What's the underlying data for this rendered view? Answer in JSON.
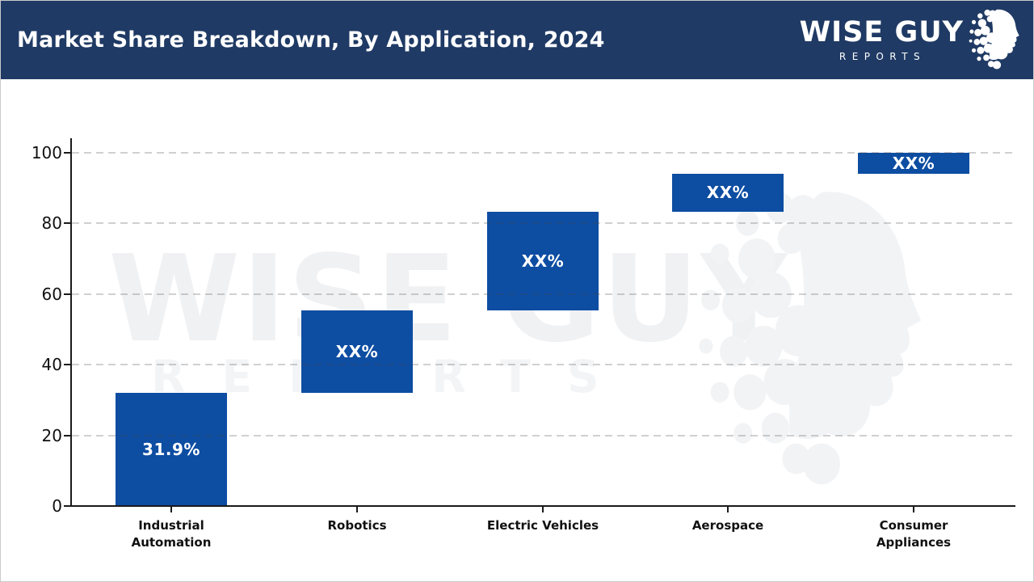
{
  "header": {
    "title": "Market Share Breakdown, By Application, 2024",
    "logo": {
      "line1": "WISE GUY",
      "line2": "REPORTS"
    }
  },
  "watermark": {
    "line1": "WISE GUY",
    "line2": "REPORTS"
  },
  "chart_data": {
    "type": "bar",
    "subtype": "waterfall",
    "title": "Market Share Breakdown, By Application, 2024",
    "xlabel": "",
    "ylabel": "",
    "categories": [
      "Industrial\nAutomation",
      "Robotics",
      "Electric Vehicles",
      "Aerospace",
      "Consumer\nAppliances"
    ],
    "bars": [
      {
        "category": "Industrial Automation",
        "start": 0,
        "end": 31.9,
        "label": "31.9%"
      },
      {
        "category": "Robotics",
        "start": 31.9,
        "end": 55.3,
        "label": "XX%"
      },
      {
        "category": "Electric Vehicles",
        "start": 55.3,
        "end": 83.2,
        "label": "XX%"
      },
      {
        "category": "Aerospace",
        "start": 83.2,
        "end": 94.0,
        "label": "XX%"
      },
      {
        "category": "Consumer Appliances",
        "start": 94.0,
        "end": 100.0,
        "label": "XX%"
      }
    ],
    "y_ticks": [
      0,
      20,
      40,
      60,
      80,
      100
    ],
    "ylim": [
      0,
      104
    ],
    "grid": "horizontal dashed",
    "legend": "none",
    "bar_color": "#0d4da2",
    "header_color": "#1f3a64",
    "label_color": "#ffffff"
  }
}
